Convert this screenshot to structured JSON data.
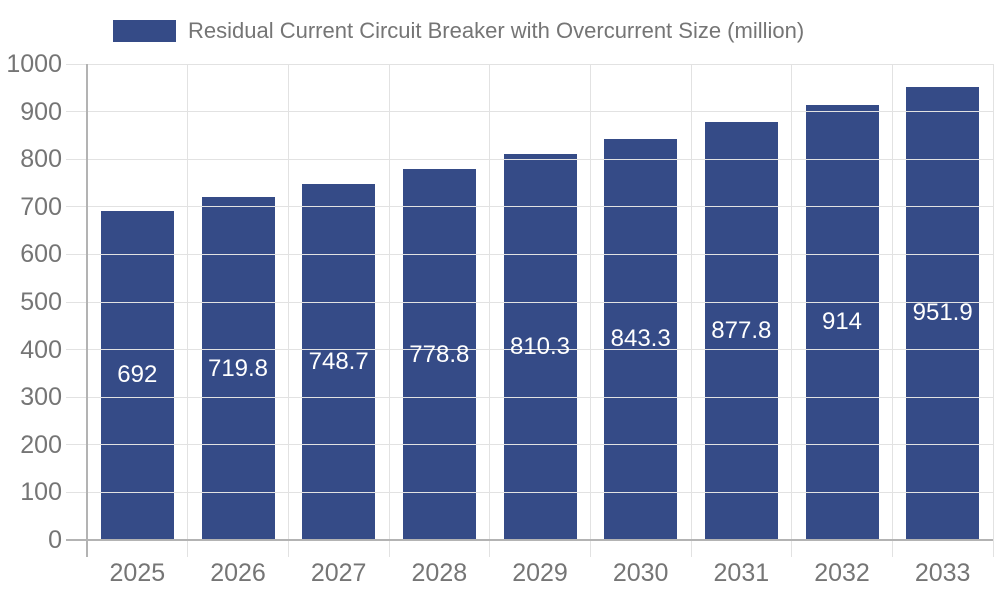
{
  "legend": {
    "label": "Residual Current Circuit Breaker with Overcurrent Size (million)"
  },
  "chart_data": {
    "type": "bar",
    "title": "",
    "series_name": "Residual Current Circuit Breaker with Overcurrent Size (million)",
    "categories": [
      "2025",
      "2026",
      "2027",
      "2028",
      "2029",
      "2030",
      "2031",
      "2032",
      "2033"
    ],
    "values": [
      692,
      719.8,
      748.7,
      778.8,
      810.3,
      843.3,
      877.8,
      914,
      951.9
    ],
    "value_labels": [
      "692",
      "719.8",
      "748.7",
      "778.8",
      "810.3",
      "843.3",
      "877.8",
      "914",
      "951.9"
    ],
    "xlabel": "",
    "ylabel": "",
    "ylim": [
      0,
      1000
    ],
    "ytick_interval": 100,
    "ytick_labels": [
      "0",
      "100",
      "200",
      "300",
      "400",
      "500",
      "600",
      "700",
      "800",
      "900",
      "1000"
    ],
    "grid": true,
    "legend_position": "top-center",
    "colors": {
      "bar": "#354B87",
      "bar_label": "#FFFFFF",
      "axis_text": "#757575",
      "legend_text": "#757575",
      "grid_line": "#E2E2E2",
      "axis_line": "#B3B3B3",
      "background": "#FFFFFF"
    }
  }
}
